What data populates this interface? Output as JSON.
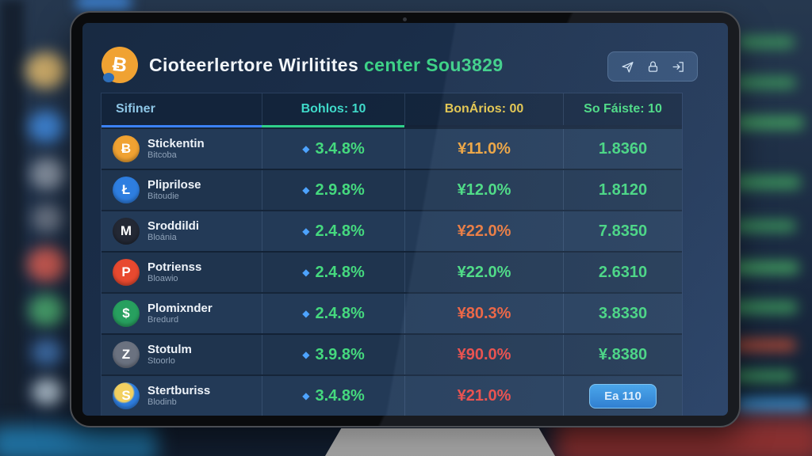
{
  "header": {
    "title_white": "Cioteerlertore Wirlitites",
    "title_green": "center Sou3829",
    "logo_glyph": "Ƀ",
    "toolbar_icons": [
      "send-icon",
      "lock-icon",
      "logout-icon"
    ]
  },
  "table": {
    "arrow_glyph": "◆",
    "columns": [
      {
        "label": "Sifiner",
        "color": "#8ec6e6"
      },
      {
        "label": "Bohlos: 10",
        "color": "#3fd9c9"
      },
      {
        "label": "BonÁrios: 00",
        "color": "#e8c84a"
      },
      {
        "label": "So Fáiste: 10",
        "color": "#4ade80"
      }
    ],
    "rows": [
      {
        "name": "Stickentin",
        "sub": "Bitcoba",
        "icon_glyph": "Ƀ",
        "icon_bg": "#f0a232",
        "change": "3.4.8%",
        "mid": "¥11.0%",
        "mid_color": "#f2a53c",
        "value": "1.8360"
      },
      {
        "name": "Pliprilose",
        "sub": "Bitoudie",
        "icon_glyph": "Ł",
        "icon_bg": "#2e7ee0",
        "change": "2.9.8%",
        "mid": "¥12.0%",
        "mid_color": "#4ade80",
        "value": "1.8120"
      },
      {
        "name": "Sroddildi",
        "sub": "Bloánia",
        "icon_glyph": "M",
        "icon_bg": "#232834",
        "change": "2.4.8%",
        "mid": "¥22.0%",
        "mid_color": "#f07a3a",
        "value": "7.8350"
      },
      {
        "name": "Potrienss",
        "sub": "Bloawio",
        "icon_glyph": "P",
        "icon_bg": "#e8492f",
        "change": "2.4.8%",
        "mid": "¥22.0%",
        "mid_color": "#4ade80",
        "value": "2.6310"
      },
      {
        "name": "Plomixnder",
        "sub": "Bredurd",
        "icon_glyph": "$",
        "icon_bg": "#27a05f",
        "change": "2.4.8%",
        "mid": "¥80.3%",
        "mid_color": "#f2603a",
        "value": "3.8330"
      },
      {
        "name": "Stotulm",
        "sub": "Stoorlo",
        "icon_glyph": "Z",
        "icon_bg": "#6b7280",
        "change": "3.9.8%",
        "mid": "¥90.0%",
        "mid_color": "#ef4a44",
        "value": "¥.8380"
      },
      {
        "name": "Stertburiss",
        "sub": "Blodinb",
        "icon_glyph": "S",
        "icon_bg": "#2e7ee0",
        "icon_accent": "#f2d060",
        "change": "3.4.8%",
        "mid": "¥21.0%",
        "mid_color": "#ef4a44",
        "button_label": "Ea 110"
      }
    ]
  },
  "colors": {
    "change_green": "#45d97e",
    "arrow_blue": "#4da3ff",
    "underline_blue": "#3b82f6",
    "underline_green": "#2fd08a",
    "button_blue": "#2e8fe0"
  }
}
